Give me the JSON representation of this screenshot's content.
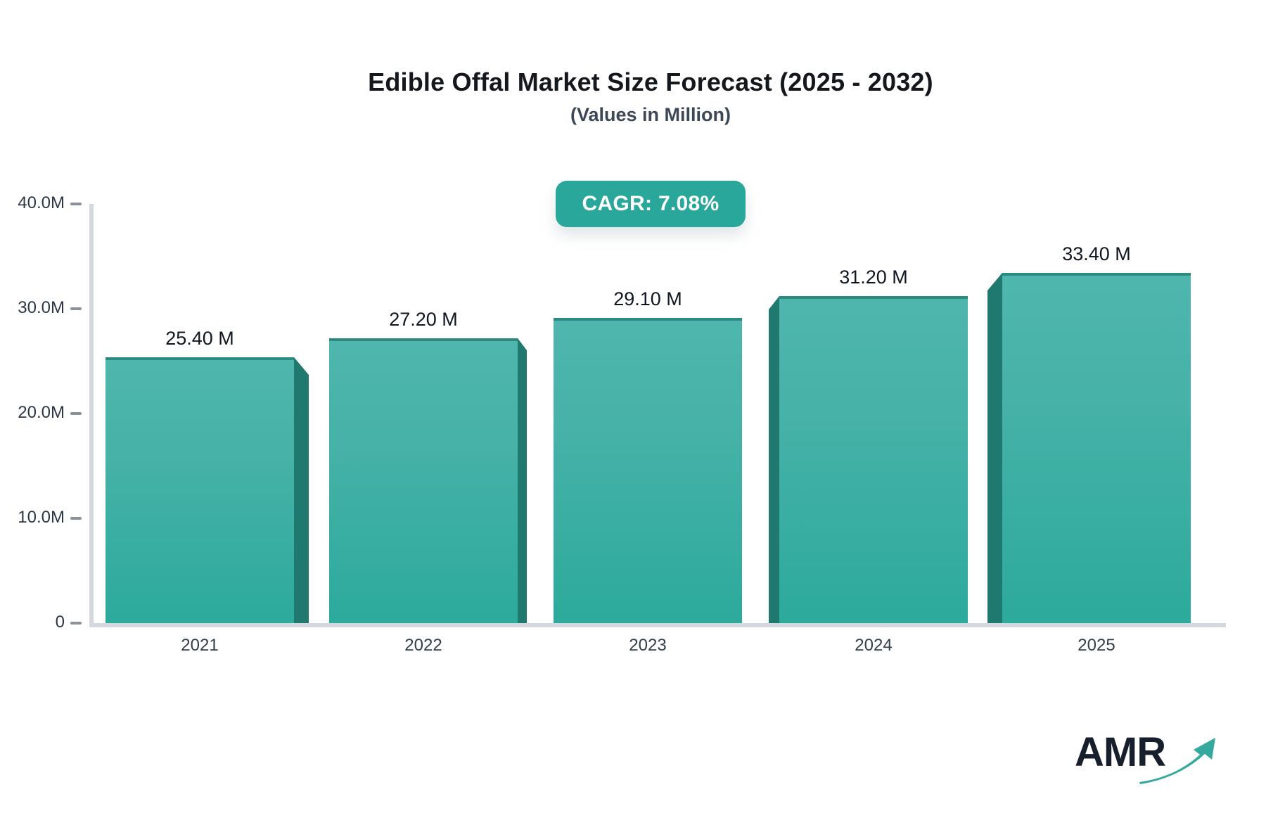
{
  "chart_data": {
    "type": "bar",
    "title": "Edible Offal Market Size Forecast (2025 - 2032)",
    "subtitle": "(Values in Million)",
    "badge": "CAGR: 7.08%",
    "categories": [
      "2021",
      "2022",
      "2023",
      "2024",
      "2025"
    ],
    "values": [
      25.4,
      27.2,
      29.1,
      31.2,
      33.4
    ],
    "value_labels": [
      "25.40 M",
      "27.20 M",
      "29.10 M",
      "31.20 M",
      "33.40 M"
    ],
    "y_ticks": [
      "40.0M",
      "30.0M",
      "20.0M",
      "10.0M",
      "0"
    ],
    "ylim": [
      0,
      40
    ],
    "grid": false,
    "legend": false,
    "layout_hint": "3d-perspective-bars, side faces angle toward center bar",
    "colors": {
      "bar_top": "#4fb6ad",
      "bar_bottom": "#2caa9c",
      "bar_side": "#20796f",
      "bar_edge": "#2b8b81",
      "badge_bg": "#2aa79b",
      "badge_text": "#ffffff",
      "axis_line": "#d5d8de",
      "tick_text": "#2c3644",
      "value_text": "#10161f",
      "logo_text": "#161f2b",
      "logo_arrow": "#35a99d"
    }
  },
  "branding": {
    "logo_text": "AMR"
  }
}
